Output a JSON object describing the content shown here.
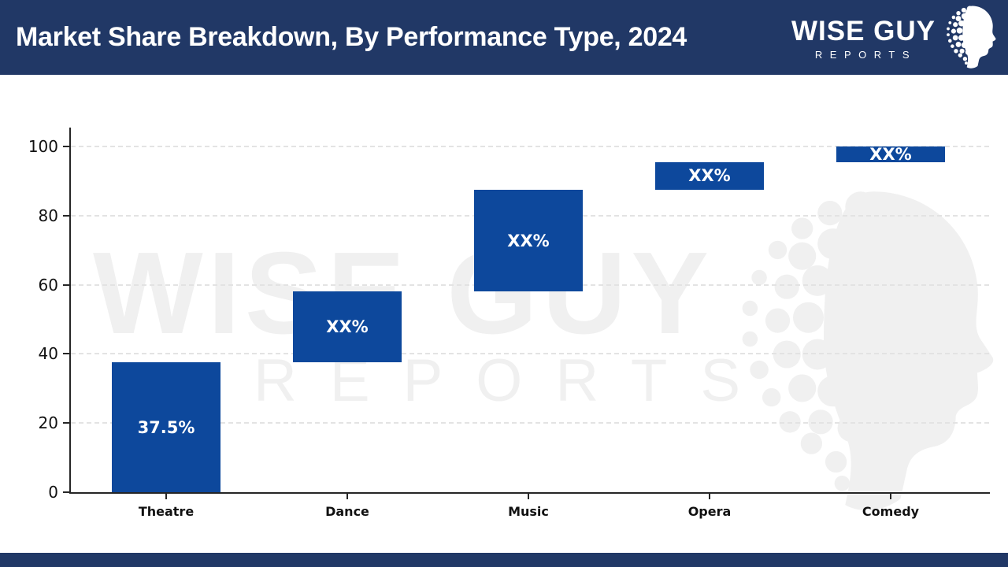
{
  "header": {
    "title": "Market Share Breakdown, By Performance Type, 2024",
    "logo": {
      "name": "WISE GUY",
      "subtitle": "REPORTS"
    }
  },
  "watermark": {
    "name": "WISE GUY",
    "subtitle": "REPORTS"
  },
  "colors": {
    "header_bg": "#213866",
    "footer_bg": "#213866",
    "bar": "#0d489c",
    "bar_label": "#ffffff",
    "grid": "#e3e3e3",
    "axis": "#262626",
    "watermark": "#f0f0f0",
    "chart_bg": "#ffffff",
    "title_text": "#ffffff"
  },
  "chart_data": {
    "type": "bar",
    "variant": "waterfall",
    "title": "Market Share Breakdown, By Performance Type, 2024",
    "categories": [
      "Theatre",
      "Dance",
      "Music",
      "Opera",
      "Comedy"
    ],
    "segments": [
      {
        "category": "Theatre",
        "start": 0,
        "end": 37.5,
        "label": "37.5%"
      },
      {
        "category": "Dance",
        "start": 37.5,
        "end": 58,
        "label": "XX%"
      },
      {
        "category": "Music",
        "start": 58,
        "end": 87.5,
        "label": "XX%"
      },
      {
        "category": "Opera",
        "start": 87.5,
        "end": 95.5,
        "label": "XX%"
      },
      {
        "category": "Comedy",
        "start": 95.5,
        "end": 100,
        "label": "XX%"
      }
    ],
    "xlabel": "",
    "ylabel": "",
    "yticks": [
      0,
      20,
      40,
      60,
      80,
      100
    ],
    "ylim": [
      0,
      105
    ],
    "grid": "horizontal-dashed",
    "legend": "none",
    "bar_color": "#0d489c"
  }
}
